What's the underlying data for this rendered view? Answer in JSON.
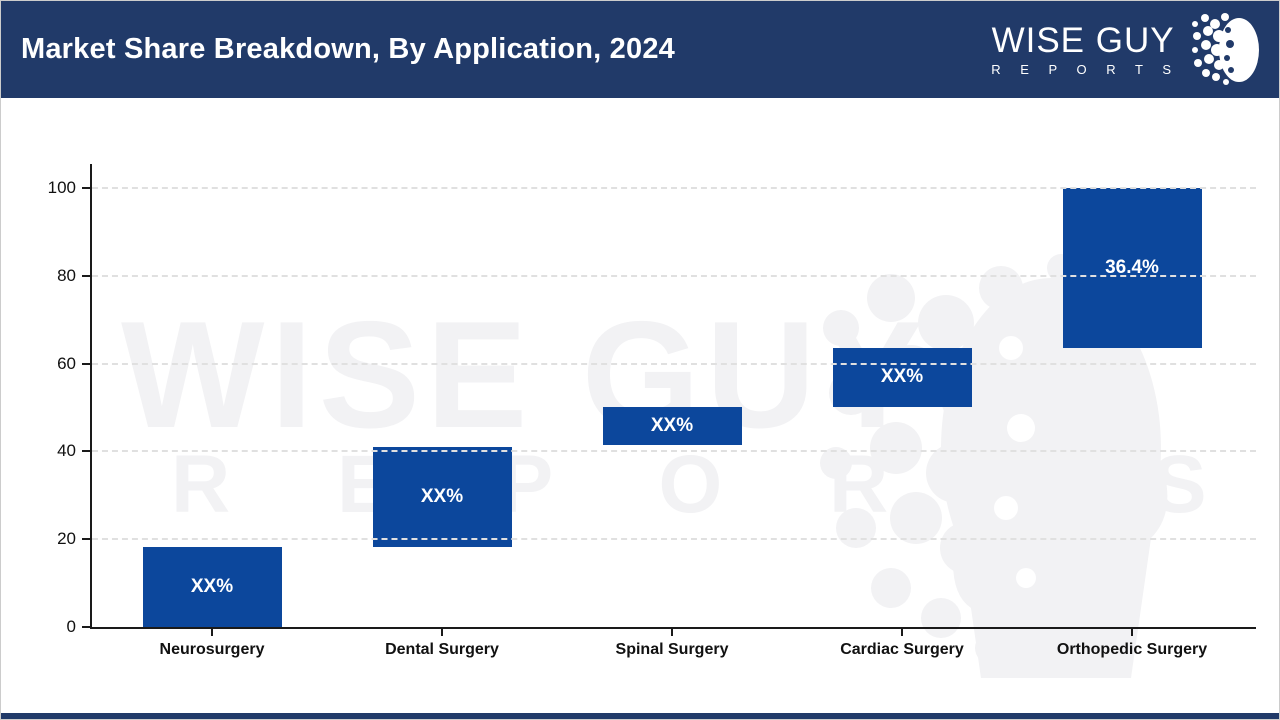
{
  "header": {
    "title": "Market Share Breakdown, By Application, 2024",
    "logo": {
      "line1": "WISE GUY",
      "line2": "R E P O R T S"
    }
  },
  "watermark": {
    "line1": "WISE GUY",
    "line2": "R E P O R T S"
  },
  "colors": {
    "header_bg": "#213a69",
    "footer_bg": "#213a69",
    "bar": "#0c479c",
    "bar_label": "#ffffff",
    "grid": "#e0e0e0",
    "axis": "#1a1a1a",
    "watermark_text": "#f2f2f4",
    "logo_text": "#ffffff"
  },
  "chart_data": {
    "type": "bar",
    "subtype": "waterfall-floating-bars",
    "title": "Market Share Breakdown, By Application, 2024",
    "categories": [
      "Neurosurgery",
      "Dental Surgery",
      "Spinal Surgery",
      "Cardiac Surgery",
      "Orthopedic Surgery"
    ],
    "segments": [
      {
        "category": "Neurosurgery",
        "start": 0,
        "end": 18.2,
        "label": "XX%"
      },
      {
        "category": "Dental Surgery",
        "start": 18.2,
        "end": 41.0,
        "label": "XX%"
      },
      {
        "category": "Spinal Surgery",
        "start": 41.4,
        "end": 50.2,
        "label": "XX%"
      },
      {
        "category": "Cardiac Surgery",
        "start": 50.2,
        "end": 63.6,
        "label": "XX%"
      },
      {
        "category": "Orthopedic Surgery",
        "start": 63.6,
        "end": 100,
        "label": "36.4%"
      }
    ],
    "xlabel": "",
    "ylabel": "",
    "ylim": [
      0,
      105
    ],
    "yticks": [
      0,
      20,
      40,
      60,
      80,
      100
    ],
    "grid": "horizontal-dashed",
    "legend": "none"
  }
}
